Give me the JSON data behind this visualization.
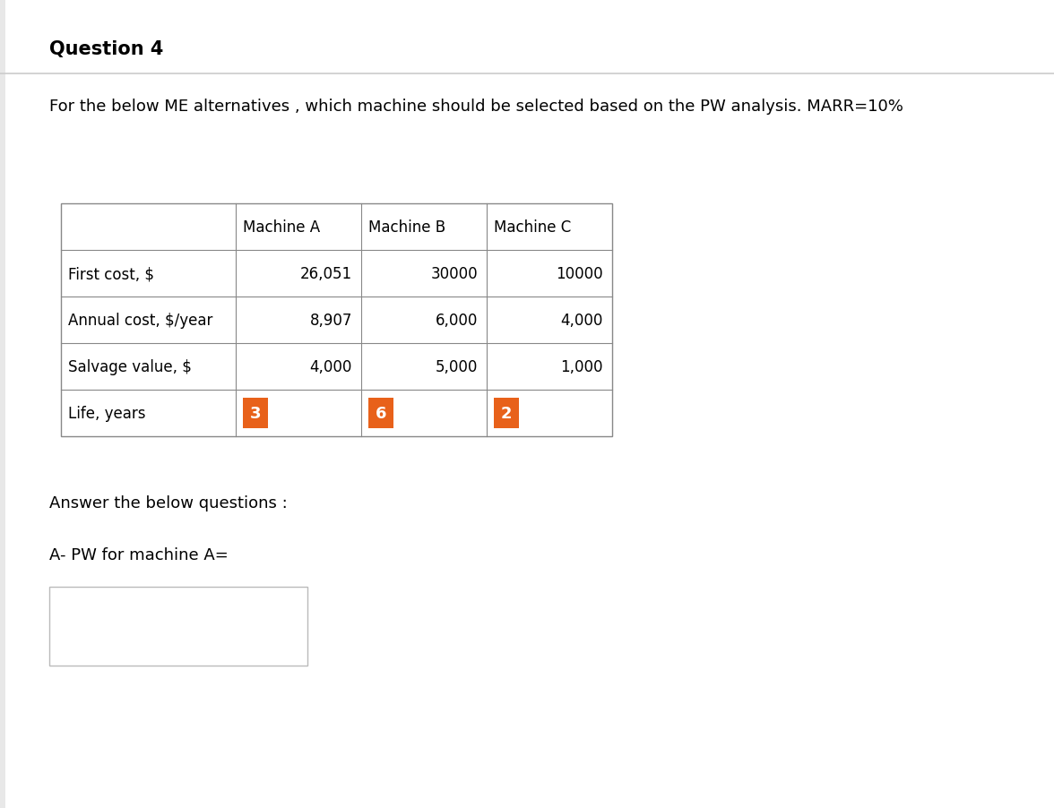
{
  "title": "Question 4",
  "subtitle": "For the below ME alternatives , which machine should be selected based on the PW analysis. MARR=10%",
  "table_headers": [
    "",
    "Machine A",
    "Machine B",
    "Machine C"
  ],
  "table_rows": [
    [
      "First cost, $",
      "26,051",
      "30000",
      "10000"
    ],
    [
      "Annual cost, $/year",
      "8,907",
      "6,000",
      "4,000"
    ],
    [
      "Salvage value, $",
      "4,000",
      "5,000",
      "1,000"
    ],
    [
      "Life, years",
      "3",
      "6",
      "2"
    ]
  ],
  "highlight_color": "#E8611A",
  "highlight_text_color": "#FFFFFF",
  "answer_label": "Answer the below questions :",
  "question_a": "A- PW for machine A=",
  "background_color": "#FFFFFF",
  "left_bar_color": "#DDDDDD",
  "title_font_size": 15,
  "subtitle_font_size": 13,
  "table_font_size": 12,
  "answer_font_size": 13
}
